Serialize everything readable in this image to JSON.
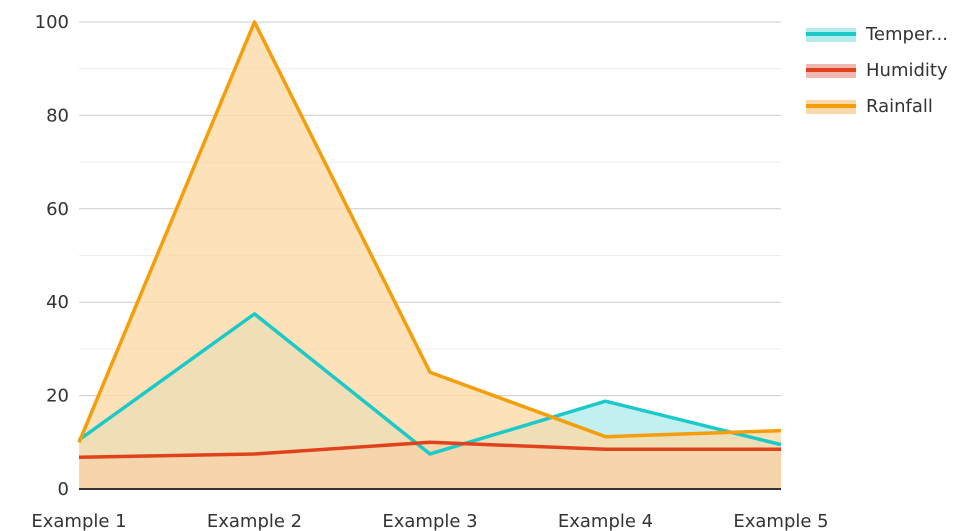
{
  "chart_data": {
    "type": "area",
    "title": "",
    "xlabel": "",
    "ylabel": "",
    "categories": [
      "Example 1",
      "Example 2",
      "Example 3",
      "Example 4",
      "Example 5"
    ],
    "ylim": [
      0,
      100
    ],
    "y_ticks": [
      0,
      20,
      40,
      60,
      80,
      100
    ],
    "y_tick_labels": [
      "0",
      "20",
      "40",
      "60",
      "80",
      "100"
    ],
    "grid": true,
    "legend_position": "top-right",
    "series": [
      {
        "name": "Temper...",
        "values": [
          10.5,
          37.5,
          7.5,
          18.8,
          9.5
        ],
        "color": "#1cc9c9",
        "fill": "#b3ecec"
      },
      {
        "name": "Humidity",
        "values": [
          6.8,
          7.5,
          10.0,
          8.5,
          8.5
        ],
        "color": "#e0421c",
        "fill": "#f0b8b0"
      },
      {
        "name": "Rainfall",
        "values": [
          10.0,
          100.0,
          25.0,
          11.2,
          12.5
        ],
        "color": "#f59e0b",
        "fill": "#fbd9a8"
      }
    ]
  }
}
